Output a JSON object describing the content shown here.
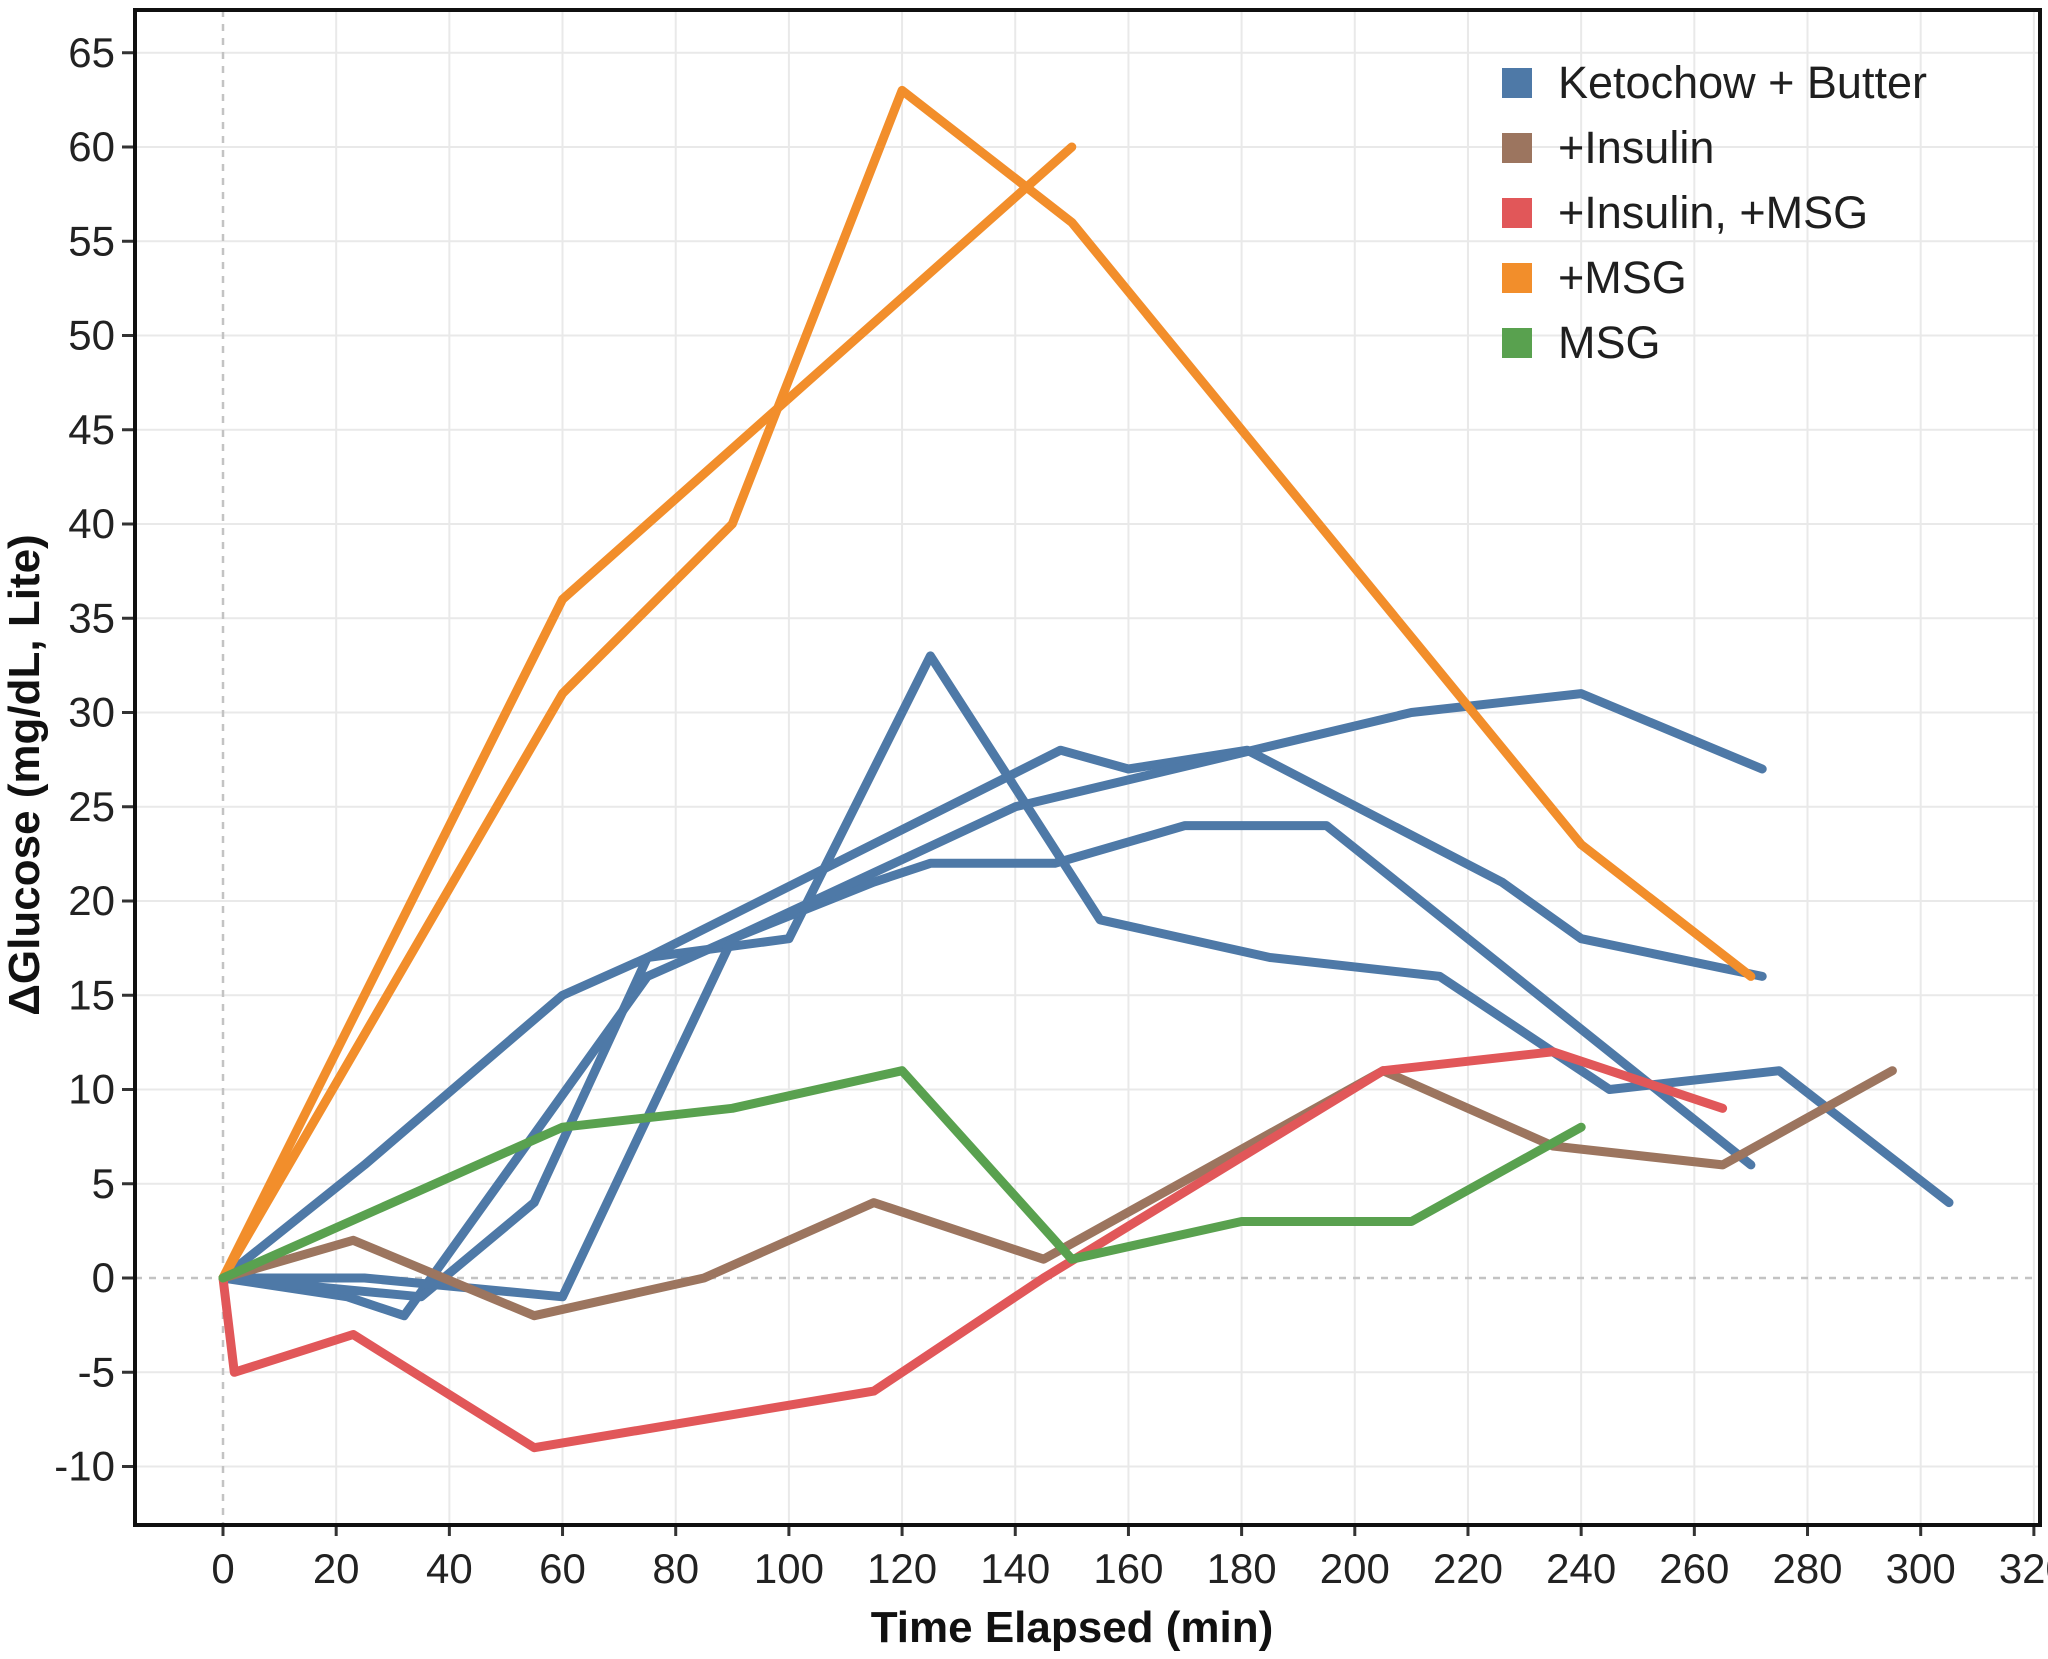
{
  "chart_data": {
    "type": "line",
    "title": "",
    "xlabel": "Time Elapsed (min)",
    "ylabel": "ΔGlucose (mg/dL, Lite)",
    "x_ticks": [
      0,
      20,
      40,
      60,
      80,
      100,
      120,
      140,
      160,
      180,
      200,
      220,
      240,
      260,
      280,
      300,
      320
    ],
    "y_ticks": [
      -10,
      -5,
      0,
      5,
      10,
      15,
      20,
      25,
      30,
      35,
      40,
      45,
      50,
      55,
      60,
      65
    ],
    "xlim": [
      -16,
      321
    ],
    "ylim": [
      -13,
      67
    ],
    "grid": true,
    "zero_reference_lines": true,
    "legend_position": "top-right",
    "colors": {
      "blue": "#4e79a7",
      "brown": "#9c755f",
      "red": "#e15759",
      "orange": "#f28e2b",
      "green": "#59a14f"
    },
    "series": [
      {
        "name": "Ketochow + Butter",
        "color": "#4e79a7",
        "runs": [
          [
            [
              0,
              0
            ],
            [
              25,
              6
            ],
            [
              60,
              15
            ],
            [
              75,
              17
            ],
            [
              100,
              18
            ],
            [
              125,
              33
            ],
            [
              155,
              19
            ],
            [
              185,
              17
            ],
            [
              215,
              16
            ],
            [
              245,
              10
            ],
            [
              275,
              11
            ],
            [
              305,
              4
            ]
          ],
          [
            [
              0,
              0
            ],
            [
              22,
              -1
            ],
            [
              32,
              -2
            ],
            [
              75,
              16
            ],
            [
              90,
              18
            ],
            [
              115,
              21
            ],
            [
              125,
              22
            ],
            [
              147,
              22
            ],
            [
              170,
              24
            ],
            [
              195,
              24
            ],
            [
              270,
              6
            ]
          ],
          [
            [
              0,
              0
            ],
            [
              35,
              -1
            ],
            [
              55,
              4
            ],
            [
              75,
              17
            ],
            [
              148,
              28
            ],
            [
              160,
              27
            ],
            [
              181,
              28
            ],
            [
              226,
              21
            ],
            [
              240,
              18
            ],
            [
              272,
              16
            ]
          ],
          [
            [
              0,
              0
            ],
            [
              25,
              0
            ],
            [
              60,
              -1
            ],
            [
              90,
              18
            ],
            [
              140,
              25
            ],
            [
              210,
              30
            ],
            [
              240,
              31
            ],
            [
              272,
              27
            ]
          ]
        ]
      },
      {
        "name": "+Insulin",
        "color": "#9c755f",
        "runs": [
          [
            [
              0,
              0
            ],
            [
              23,
              2
            ],
            [
              55,
              -2
            ],
            [
              85,
              0
            ],
            [
              115,
              4
            ],
            [
              145,
              1
            ],
            [
              205,
              11
            ],
            [
              235,
              7
            ],
            [
              265,
              6
            ],
            [
              295,
              11
            ]
          ]
        ]
      },
      {
        "name": "+Insulin, +MSG",
        "color": "#e15759",
        "runs": [
          [
            [
              0,
              0
            ],
            [
              2,
              -5
            ],
            [
              23,
              -3
            ],
            [
              55,
              -9
            ],
            [
              85,
              -7.5
            ],
            [
              115,
              -6
            ],
            [
              145,
              0
            ],
            [
              205,
              11
            ],
            [
              235,
              12
            ],
            [
              265,
              9
            ]
          ]
        ]
      },
      {
        "name": "+MSG",
        "color": "#f28e2b",
        "runs": [
          [
            [
              0,
              0
            ],
            [
              60,
              31
            ],
            [
              90,
              40
            ],
            [
              120,
              63
            ],
            [
              150,
              56
            ],
            [
              240,
              23
            ],
            [
              270,
              16
            ]
          ],
          [
            [
              0,
              0
            ],
            [
              60,
              36
            ],
            [
              150,
              60
            ]
          ]
        ]
      },
      {
        "name": "MSG",
        "color": "#59a14f",
        "runs": [
          [
            [
              0,
              0
            ],
            [
              60,
              8
            ],
            [
              90,
              9
            ],
            [
              120,
              11
            ],
            [
              150,
              1
            ],
            [
              180,
              3
            ],
            [
              210,
              3
            ],
            [
              240,
              8
            ]
          ]
        ]
      }
    ]
  }
}
